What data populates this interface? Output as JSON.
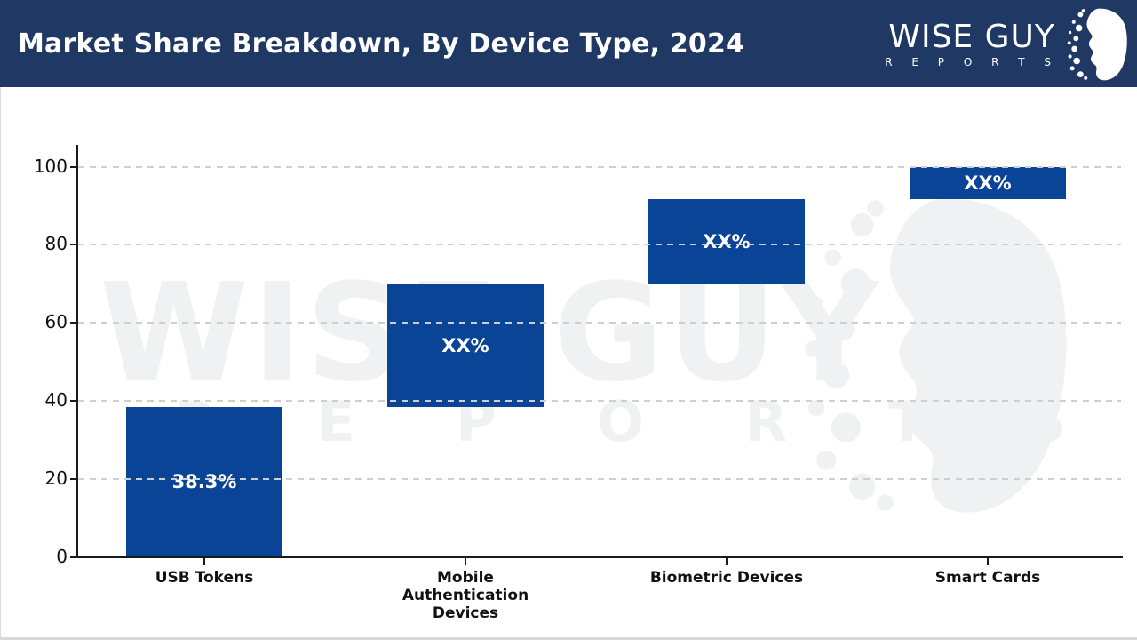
{
  "header": {
    "title": "Market Share Breakdown, By Device Type, 2024",
    "logo": {
      "line1": "WISE GUY",
      "line2": "R E P O R T S"
    }
  },
  "watermark": {
    "line1": "WISE GUY",
    "line2": "R E P O R T S"
  },
  "chart_data": {
    "type": "bar",
    "subtype": "waterfall",
    "title": "Market Share Breakdown, By Device Type, 2024",
    "categories": [
      "USB Tokens",
      "Mobile\nAuthentication\nDevices",
      "Biometric Devices",
      "Smart Cards"
    ],
    "segments": [
      {
        "category": "USB Tokens",
        "start": 0,
        "end": 38.3,
        "value": 38.3,
        "label": "38.3%"
      },
      {
        "category": "Mobile Authentication Devices",
        "start": 38.3,
        "end": 70.0,
        "value": 31.7,
        "label": "XX%"
      },
      {
        "category": "Biometric Devices",
        "start": 70.0,
        "end": 91.7,
        "value": 21.7,
        "label": "XX%"
      },
      {
        "category": "Smart Cards",
        "start": 91.7,
        "end": 100.0,
        "value": 8.3,
        "label": "XX%"
      }
    ],
    "yticks": [
      0,
      20,
      40,
      60,
      80,
      100
    ],
    "ylim": [
      0,
      105
    ],
    "xlabel": "",
    "ylabel": "",
    "grid": "dashed-horizontal",
    "legend": false,
    "bar_color": "#0a4496",
    "bar_label_color": "#ffffff"
  }
}
